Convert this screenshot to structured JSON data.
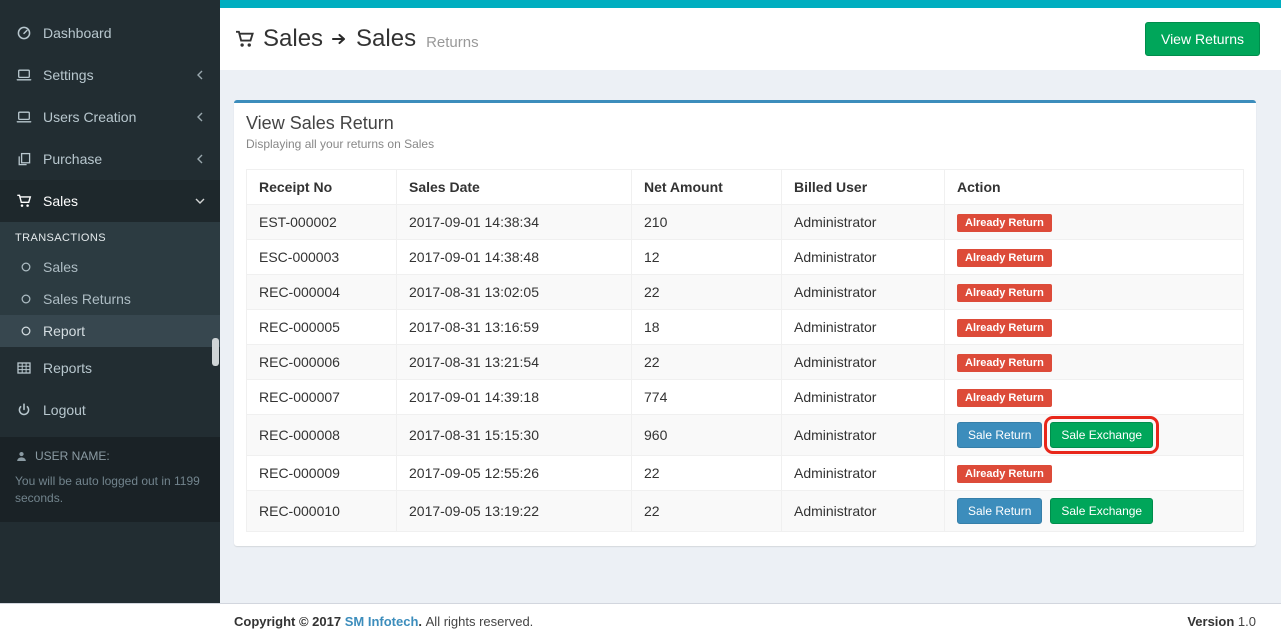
{
  "sidebar": {
    "items": [
      {
        "label": "Dashboard",
        "icon": "gauge-icon"
      },
      {
        "label": "Settings",
        "icon": "laptop-icon",
        "chevron": "left"
      },
      {
        "label": "Users Creation",
        "icon": "laptop-icon",
        "chevron": "left"
      },
      {
        "label": "Purchase",
        "icon": "files-icon",
        "chevron": "left"
      },
      {
        "label": "Sales",
        "icon": "cart-icon",
        "chevron": "down",
        "active": true
      }
    ],
    "transactions_header": "TRANSACTIONS",
    "sub_items": [
      {
        "label": "Sales",
        "icon": "circle-outline-icon"
      },
      {
        "label": "Sales Returns",
        "icon": "circle-outline-icon"
      },
      {
        "label": "Report",
        "icon": "circle-outline-icon"
      }
    ],
    "bottom_items": [
      {
        "label": "Reports",
        "icon": "table-icon"
      },
      {
        "label": "Logout",
        "icon": "power-icon"
      }
    ],
    "user_label": "USER NAME:",
    "logout_notice": "You will be auto logged out in 1199 seconds."
  },
  "header": {
    "breadcrumb": {
      "primary": "Sales",
      "secondary": "Sales",
      "suffix": "Returns"
    },
    "view_returns_button": "View Returns"
  },
  "panel": {
    "title": "View Sales Return",
    "subtitle": "Displaying all your returns on Sales",
    "table": {
      "columns": [
        "Receipt No",
        "Sales Date",
        "Net Amount",
        "Billed User",
        "Action"
      ],
      "rows": [
        {
          "receipt": "EST-000002",
          "date": "2017-09-01 14:38:34",
          "amount": "210",
          "user": "Administrator",
          "actions": [
            {
              "type": "already_return"
            }
          ]
        },
        {
          "receipt": "ESC-000003",
          "date": "2017-09-01 14:38:48",
          "amount": "12",
          "user": "Administrator",
          "actions": [
            {
              "type": "already_return"
            }
          ]
        },
        {
          "receipt": "REC-000004",
          "date": "2017-08-31 13:02:05",
          "amount": "22",
          "user": "Administrator",
          "actions": [
            {
              "type": "already_return"
            }
          ]
        },
        {
          "receipt": "REC-000005",
          "date": "2017-08-31 13:16:59",
          "amount": "18",
          "user": "Administrator",
          "actions": [
            {
              "type": "already_return"
            }
          ]
        },
        {
          "receipt": "REC-000006",
          "date": "2017-08-31 13:21:54",
          "amount": "22",
          "user": "Administrator",
          "actions": [
            {
              "type": "already_return"
            }
          ]
        },
        {
          "receipt": "REC-000007",
          "date": "2017-09-01 14:39:18",
          "amount": "774",
          "user": "Administrator",
          "actions": [
            {
              "type": "already_return"
            }
          ]
        },
        {
          "receipt": "REC-000008",
          "date": "2017-08-31 15:15:30",
          "amount": "960",
          "user": "Administrator",
          "actions": [
            {
              "type": "sale_return"
            },
            {
              "type": "sale_exchange",
              "highlighted": true
            }
          ]
        },
        {
          "receipt": "REC-000009",
          "date": "2017-09-05 12:55:26",
          "amount": "22",
          "user": "Administrator",
          "actions": [
            {
              "type": "already_return"
            }
          ]
        },
        {
          "receipt": "REC-000010",
          "date": "2017-09-05 13:19:22",
          "amount": "22",
          "user": "Administrator",
          "actions": [
            {
              "type": "sale_return"
            },
            {
              "type": "sale_exchange"
            }
          ]
        }
      ]
    }
  },
  "action_labels": {
    "already_return": "Already Return",
    "sale_return": "Sale Return",
    "sale_exchange": "Sale Exchange"
  },
  "footer": {
    "copyright_prefix": "Copyright © 2017 ",
    "company": "SM Infotech",
    "dot": ".",
    "rights": "All rights reserved.",
    "version_label": "Version",
    "version_number": "1.0"
  },
  "colors": {
    "accent_blue": "#3c8dbc",
    "button_green": "#00a65a",
    "badge_red": "#dd4b39",
    "annotation_red": "#e8271b",
    "sidebar_bg": "#222d32",
    "top_strip": "#00aec0",
    "content_bg": "#ecf0f5"
  }
}
